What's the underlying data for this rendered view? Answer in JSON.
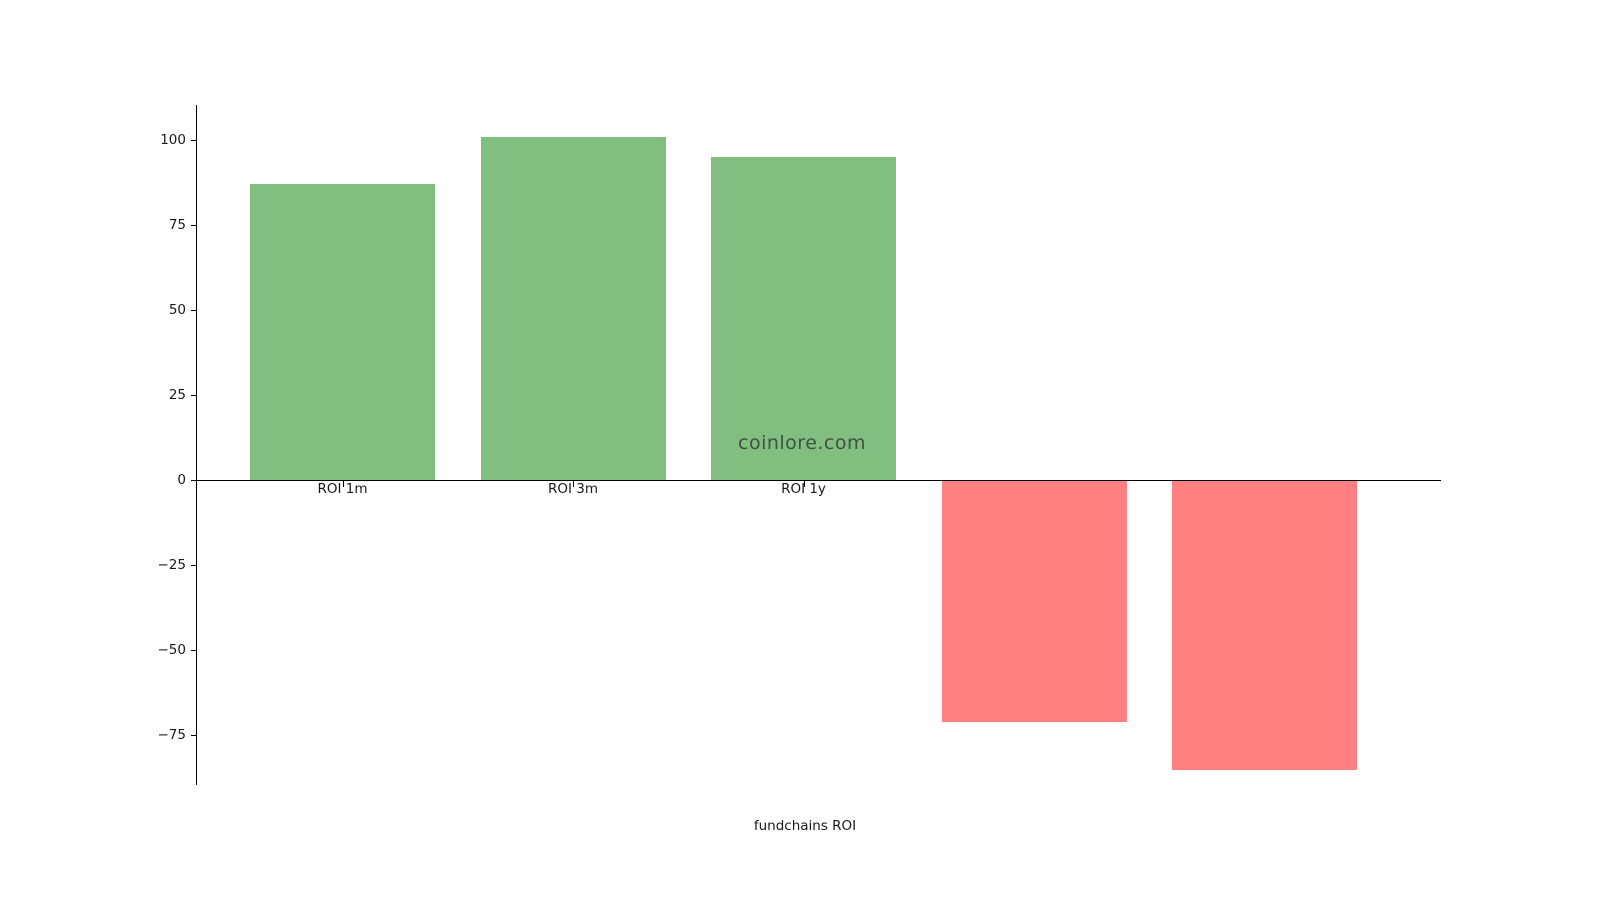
{
  "chart_data": {
    "type": "bar",
    "title": "fundchains ROI",
    "watermark": "coinlore.com",
    "categories": [
      "ROI 1m",
      "ROI 3m",
      "ROI 1y",
      "",
      ""
    ],
    "values": [
      87,
      101,
      95,
      -71,
      -85
    ],
    "series": [
      {
        "name": "ROI",
        "values": [
          87,
          101,
          95,
          -71,
          -85
        ]
      }
    ],
    "positive_color": "#80BF80",
    "negative_color": "#FF8080",
    "axis_color": "#000000",
    "yticks": [
      100,
      75,
      50,
      25,
      0,
      -25,
      -50,
      -75
    ],
    "ytick_labels": [
      "100",
      "75",
      "50",
      "25",
      "0",
      "−25",
      "−50",
      "−75"
    ],
    "ylim": [
      -90,
      110
    ],
    "xlabel": "",
    "ylabel": "",
    "grid": false,
    "legend": null,
    "notes_visible_x_labels": [
      "ROI 1m",
      "ROI 3m",
      "ROI 1y"
    ]
  }
}
